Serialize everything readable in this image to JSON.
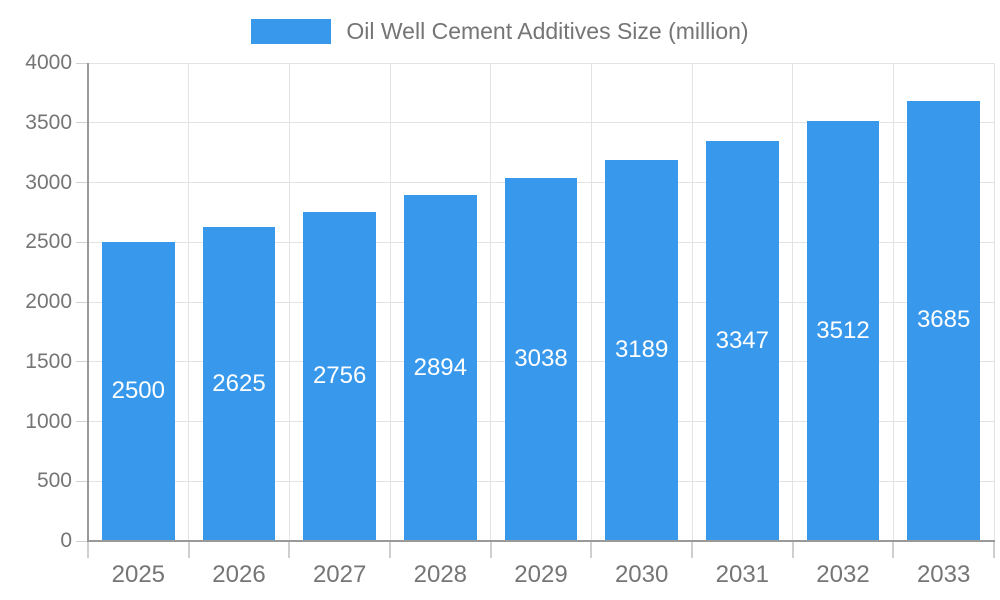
{
  "colors": {
    "bar": "#3899EC",
    "grid": "#E3E3E3",
    "axis": "#999999",
    "tick": "#CFCFCF",
    "axis_text": "#757575",
    "bar_label_text": "#FFFFFF",
    "background": "#FFFFFF"
  },
  "chart_data": {
    "type": "bar",
    "title": "",
    "legend": [
      "Oil Well Cement Additives Size (million)"
    ],
    "legend_position": "top",
    "categories": [
      "2025",
      "2026",
      "2027",
      "2028",
      "2029",
      "2030",
      "2031",
      "2032",
      "2033"
    ],
    "values": [
      2500,
      2625,
      2756,
      2894,
      3038,
      3189,
      3347,
      3512,
      3685
    ],
    "xlabel": "",
    "ylabel": "",
    "ylim": [
      0,
      4000
    ],
    "ytick_step": 500,
    "ytick_labels": [
      "0",
      "500",
      "1000",
      "1500",
      "2000",
      "2500",
      "3000",
      "3500",
      "4000"
    ],
    "grid": true,
    "value_labels": "inside-center"
  }
}
